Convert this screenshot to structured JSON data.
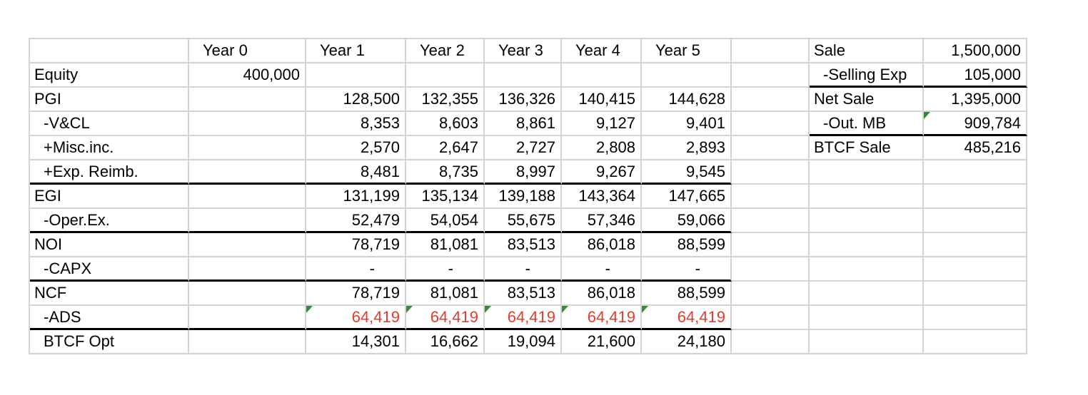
{
  "colors": {
    "background": "#ffffff",
    "grid_line": "#d4d4d4",
    "section_border": "#000000",
    "text": "#000000",
    "negative_value": "#e8392b",
    "warning_flag": "#348a38"
  },
  "cashflow_table": {
    "header": [
      "Year 0",
      "Year 1",
      "Year 2",
      "Year 3",
      "Year 4",
      "Year 5"
    ],
    "rows": [
      {
        "key": "equity",
        "label": "Equity",
        "indent": false,
        "year0": "400,000",
        "values": [
          "",
          "",
          "",
          "",
          ""
        ]
      },
      {
        "key": "pgi",
        "label": "PGI",
        "indent": false,
        "year0": "",
        "values": [
          "128,500",
          "132,355",
          "136,326",
          "140,415",
          "144,628"
        ]
      },
      {
        "key": "vcl",
        "label": "-V&CL",
        "indent": true,
        "year0": "",
        "values": [
          "8,353",
          "8,603",
          "8,861",
          "9,127",
          "9,401"
        ]
      },
      {
        "key": "misc-inc",
        "label": "+Misc.inc.",
        "indent": true,
        "year0": "",
        "values": [
          "2,570",
          "2,647",
          "2,727",
          "2,808",
          "2,893"
        ]
      },
      {
        "key": "exp-reimb",
        "label": "+Exp. Reimb.",
        "indent": true,
        "year0": "",
        "values": [
          "8,481",
          "8,735",
          "8,997",
          "9,267",
          "9,545"
        ],
        "thick_bottom": true
      },
      {
        "key": "egi",
        "label": "EGI",
        "indent": false,
        "year0": "",
        "values": [
          "131,199",
          "135,134",
          "139,188",
          "143,364",
          "147,665"
        ]
      },
      {
        "key": "oper-ex",
        "label": "-Oper.Ex.",
        "indent": true,
        "year0": "",
        "values": [
          "52,479",
          "54,054",
          "55,675",
          "57,346",
          "59,066"
        ],
        "thick_bottom": true
      },
      {
        "key": "noi",
        "label": "NOI",
        "indent": false,
        "year0": "",
        "values": [
          "78,719",
          "81,081",
          "83,513",
          "86,018",
          "88,599"
        ]
      },
      {
        "key": "capx",
        "label": "-CAPX",
        "indent": true,
        "year0": "",
        "values": [
          "-",
          "-",
          "-",
          "-",
          "-"
        ],
        "thick_bottom": true
      },
      {
        "key": "ncf",
        "label": "NCF",
        "indent": false,
        "year0": "",
        "values": [
          "78,719",
          "81,081",
          "83,513",
          "86,018",
          "88,599"
        ]
      },
      {
        "key": "ads",
        "label": "-ADS",
        "indent": true,
        "year0": "",
        "values": [
          "64,419",
          "64,419",
          "64,419",
          "64,419",
          "64,419"
        ],
        "negative": true,
        "flags": true,
        "thick_bottom": true
      },
      {
        "key": "btcf-opt",
        "label": "BTCF Opt",
        "indent": true,
        "year0": "",
        "values": [
          "14,301",
          "16,662",
          "19,094",
          "21,600",
          "24,180"
        ]
      }
    ]
  },
  "sale_table": {
    "rows": [
      {
        "key": "sale",
        "label": "Sale",
        "indent": false,
        "value": "1,500,000"
      },
      {
        "key": "selling-exp",
        "label": "-Selling Exp",
        "indent": true,
        "value": "105,000",
        "thick_bottom": true
      },
      {
        "key": "net-sale",
        "label": "Net Sale",
        "indent": false,
        "value": "1,395,000"
      },
      {
        "key": "out-mb",
        "label": "-Out. MB",
        "indent": true,
        "value": "909,784",
        "flag": true,
        "thick_bottom": true
      },
      {
        "key": "btcf-sale",
        "label": "BTCF Sale",
        "indent": false,
        "value": "485,216"
      }
    ]
  }
}
